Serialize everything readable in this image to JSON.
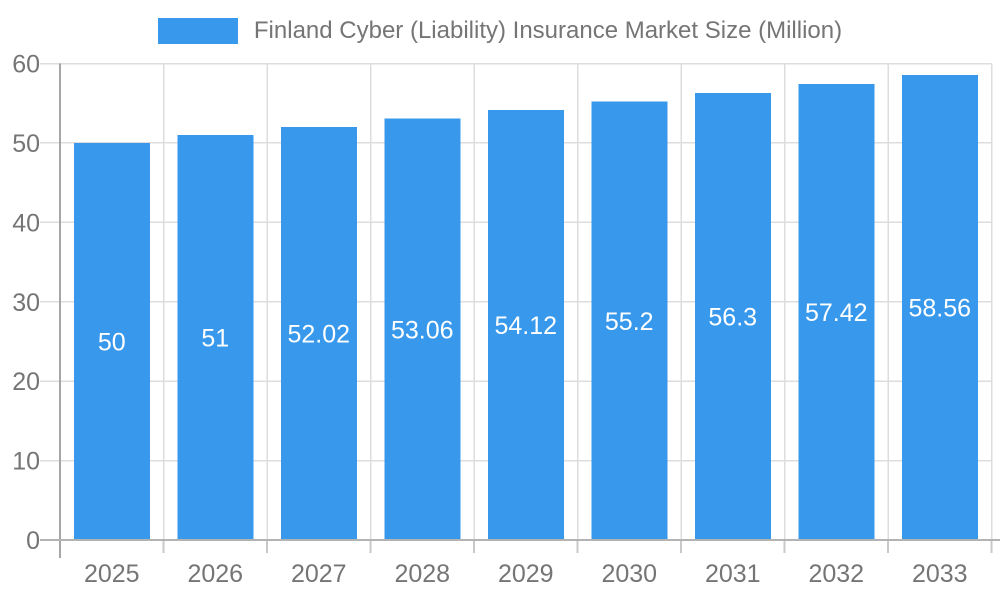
{
  "legend": {
    "label": "Finland Cyber (Liability) Insurance Market Size (Million)"
  },
  "chart_data": {
    "type": "bar",
    "title": "Finland Cyber (Liability) Insurance Market Size (Million)",
    "categories": [
      "2025",
      "2026",
      "2027",
      "2028",
      "2029",
      "2030",
      "2031",
      "2032",
      "2033"
    ],
    "values": [
      50,
      51,
      52.02,
      53.06,
      54.12,
      55.2,
      56.3,
      57.42,
      58.56
    ],
    "value_labels": [
      "50",
      "51",
      "52.02",
      "53.06",
      "54.12",
      "55.2",
      "56.3",
      "57.42",
      "58.56"
    ],
    "xlabel": "",
    "ylabel": "",
    "ylim": [
      0,
      60
    ],
    "yticks": [
      0,
      10,
      20,
      30,
      40,
      50,
      60
    ],
    "grid": true,
    "legend_position": "top",
    "colors": {
      "bar": "#3899EC",
      "bar_label": "#FFFFFF",
      "axis_text": "#757575",
      "gridline": "#DDDDDD",
      "tick": "#C9C9C9",
      "axis_line": "#B3B3B3",
      "y_axis_line": "#A6A6A6"
    }
  }
}
